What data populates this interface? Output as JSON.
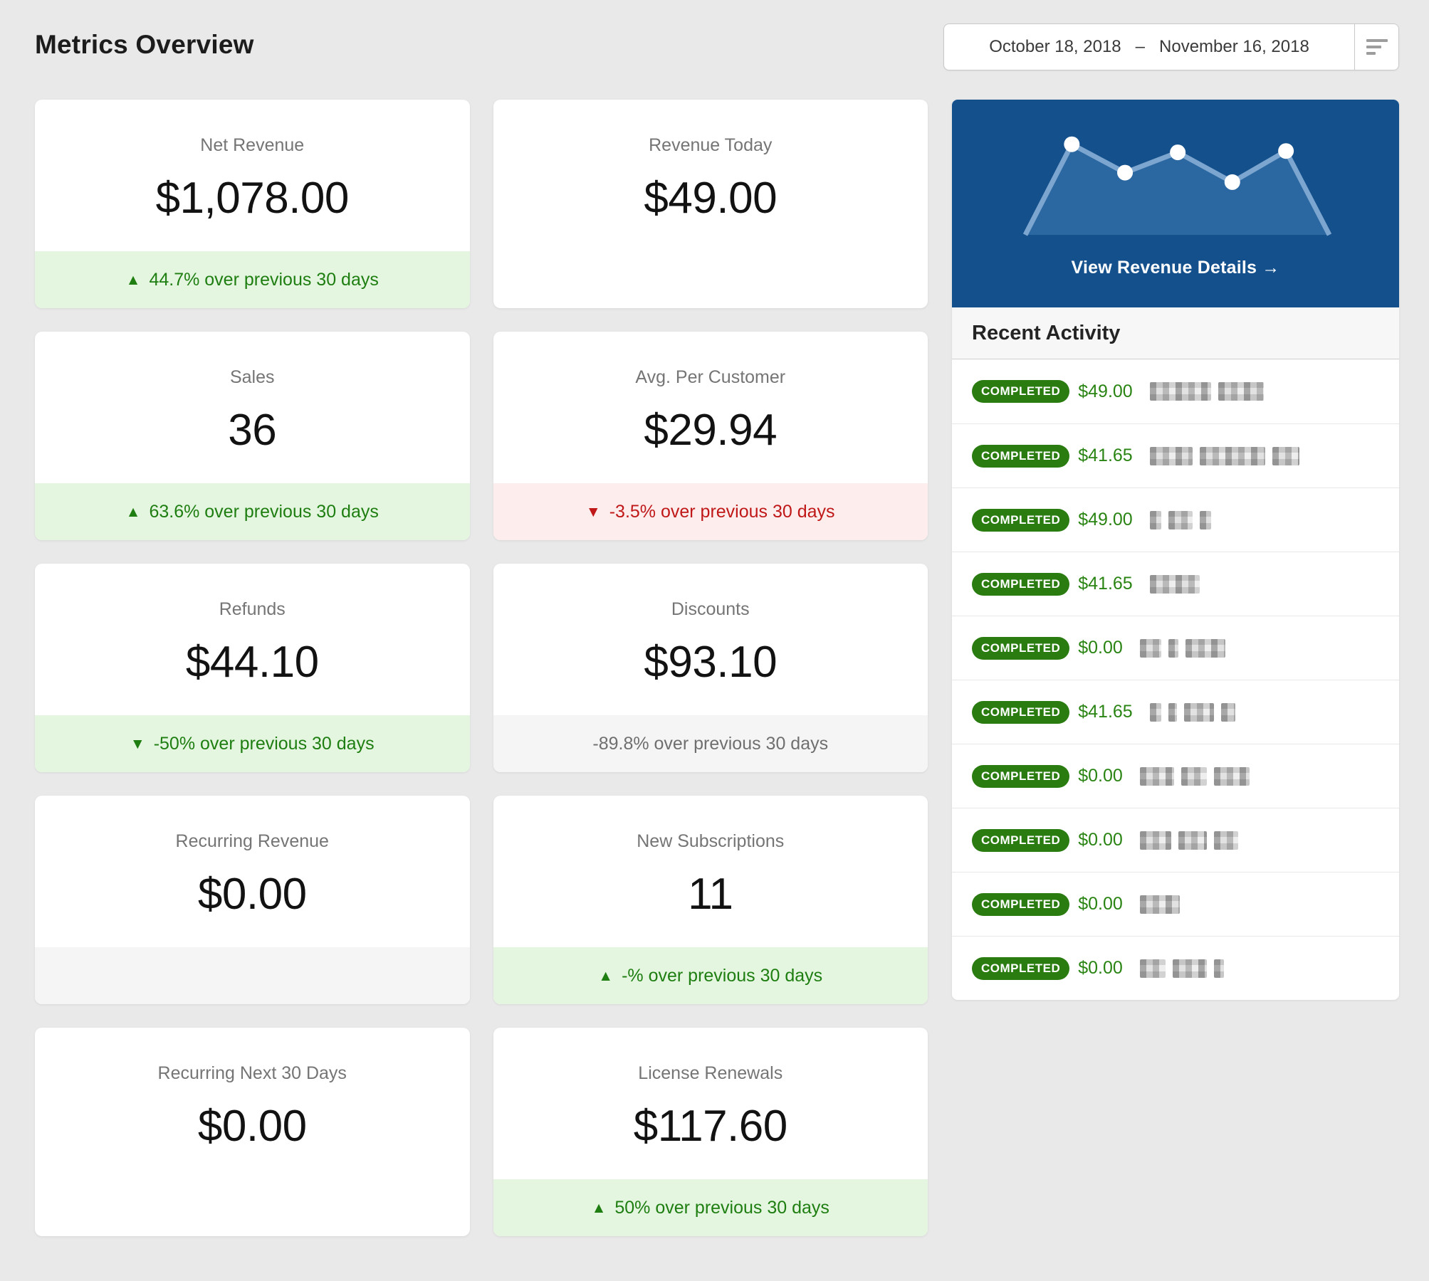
{
  "page": {
    "title": "Metrics Overview"
  },
  "glyphs": {
    "up": "▲",
    "down": "▼"
  },
  "date_range": {
    "start": "October 18, 2018",
    "separator": "–",
    "end": "November 16, 2018"
  },
  "metrics": [
    {
      "label": "Net Revenue",
      "value": "$1,078.00",
      "trend": {
        "direction": "up",
        "text": "44.7% over previous 30 days",
        "tone": "positive"
      }
    },
    {
      "label": "Revenue Today",
      "value": "$49.00",
      "trend": null
    },
    {
      "label": "Sales",
      "value": "36",
      "trend": {
        "direction": "up",
        "text": "63.6% over previous 30 days",
        "tone": "positive"
      }
    },
    {
      "label": "Avg. Per Customer",
      "value": "$29.94",
      "trend": {
        "direction": "down",
        "text": "-3.5% over previous 30 days",
        "tone": "negative"
      }
    },
    {
      "label": "Refunds",
      "value": "$44.10",
      "trend": {
        "direction": "down",
        "text": "-50% over previous 30 days",
        "tone": "positive"
      }
    },
    {
      "label": "Discounts",
      "value": "$93.10",
      "trend": {
        "direction": "none",
        "text": "-89.8% over previous 30 days",
        "tone": "neutral"
      }
    },
    {
      "label": "Recurring Revenue",
      "value": "$0.00",
      "trend": {
        "direction": "none",
        "text": "",
        "tone": "neutral"
      }
    },
    {
      "label": "New Subscriptions",
      "value": "11",
      "trend": {
        "direction": "up",
        "text": "-% over previous 30 days",
        "tone": "positive"
      }
    },
    {
      "label": "Recurring Next 30 Days",
      "value": "$0.00",
      "trend": null
    },
    {
      "label": "License Renewals",
      "value": "$117.60",
      "trend": {
        "direction": "up",
        "text": "50% over previous 30 days",
        "tone": "positive"
      }
    }
  ],
  "revenue_panel": {
    "button_label": "View Revenue Details →",
    "chart_data": {
      "type": "area",
      "x_rel": [
        16.4,
        26.8,
        38.7,
        50.5,
        62.7,
        74.7,
        84.4
      ],
      "values_rel": [
        0,
        67,
        46,
        61,
        39,
        62,
        0
      ],
      "marker_indices": [
        1,
        2,
        3,
        4,
        5
      ],
      "axes": "none",
      "legend": "none"
    }
  },
  "recent_activity": {
    "title": "Recent Activity",
    "status_label": "COMPLETED",
    "rows": [
      {
        "status": "COMPLETED",
        "amount": "$49.00",
        "name_redacted": true,
        "blur_segments": [
          86,
          64
        ]
      },
      {
        "status": "COMPLETED",
        "amount": "$41.65",
        "name_redacted": true,
        "blur_segments": [
          60,
          92,
          38
        ]
      },
      {
        "status": "COMPLETED",
        "amount": "$49.00",
        "name_redacted": true,
        "blur_segments": [
          16,
          34,
          16
        ]
      },
      {
        "status": "COMPLETED",
        "amount": "$41.65",
        "name_redacted": true,
        "blur_segments": [
          70
        ]
      },
      {
        "status": "COMPLETED",
        "amount": "$0.00",
        "name_redacted": true,
        "blur_segments": [
          30,
          14,
          56
        ]
      },
      {
        "status": "COMPLETED",
        "amount": "$41.65",
        "name_redacted": true,
        "blur_segments": [
          16,
          12,
          42,
          20
        ]
      },
      {
        "status": "COMPLETED",
        "amount": "$0.00",
        "name_redacted": true,
        "blur_segments": [
          48,
          36,
          50
        ]
      },
      {
        "status": "COMPLETED",
        "amount": "$0.00",
        "name_redacted": true,
        "blur_segments": [
          44,
          40,
          34
        ]
      },
      {
        "status": "COMPLETED",
        "amount": "$0.00",
        "name_redacted": true,
        "blur_segments": [
          56
        ]
      },
      {
        "status": "COMPLETED",
        "amount": "$0.00",
        "name_redacted": true,
        "blur_segments": [
          36,
          48,
          14
        ]
      }
    ]
  },
  "colors": {
    "page_background": "#e9e9e9",
    "panel_blue": "#14508c",
    "chart_area_fill": "#2b68a2",
    "chart_line": "#7ca6cf",
    "chart_dot": "#ffffff",
    "positive_bg": "#e4f6df",
    "positive_text": "#1e7e11",
    "negative_bg": "#fdeded",
    "negative_text": "#c01818",
    "neutral_bg": "#f5f5f5",
    "neutral_text": "#6f6f6f",
    "badge_green": "#2a7c11",
    "amount_green": "#2a8413"
  }
}
